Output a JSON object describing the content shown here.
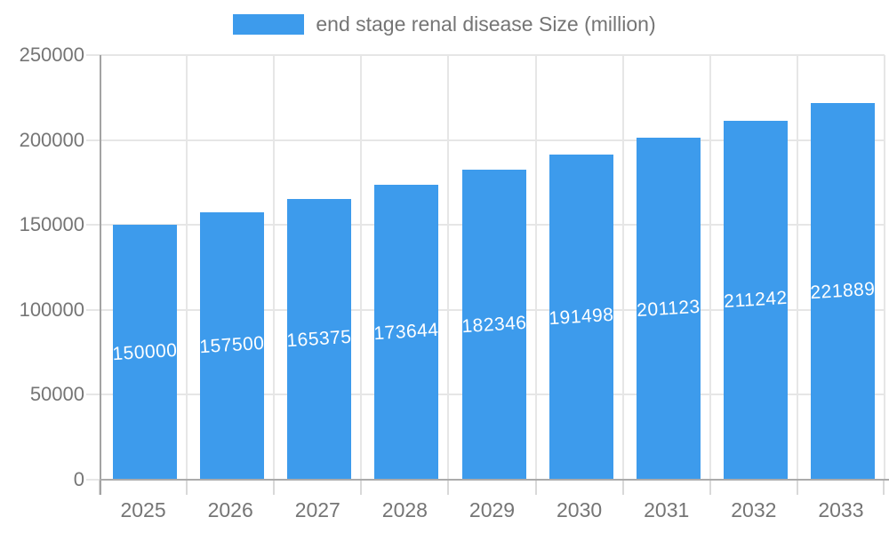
{
  "legend": {
    "label": "end stage renal disease Size (million)"
  },
  "colors": {
    "bar": "#3d9bec",
    "bar_label": "#ffffff",
    "axis_text": "#757575",
    "gridline": "#e6e6e6",
    "axis_line": "#a6a6a6"
  },
  "chart_data": {
    "type": "bar",
    "title": "",
    "xlabel": "",
    "ylabel": "",
    "categories": [
      "2025",
      "2026",
      "2027",
      "2028",
      "2029",
      "2030",
      "2031",
      "2032",
      "2033"
    ],
    "series": [
      {
        "name": "end stage renal disease Size (million)",
        "values": [
          150000,
          157500,
          165375,
          173644,
          182346,
          191498,
          201123,
          211242,
          221889
        ],
        "labels": [
          "150000",
          "157500",
          "165375",
          "173644",
          "182346",
          "191498",
          "201123",
          "211242",
          "221889"
        ],
        "color": "#3d9bec"
      }
    ],
    "ylim": [
      0,
      250000
    ],
    "yticks": [
      0,
      50000,
      100000,
      150000,
      200000,
      250000
    ],
    "ytick_labels": [
      "0",
      "50000",
      "100000",
      "150000",
      "200000",
      "250000"
    ],
    "grid": "on",
    "legend_position": "top",
    "bar_value_labels": "inside-center, white, slightly rotated"
  }
}
